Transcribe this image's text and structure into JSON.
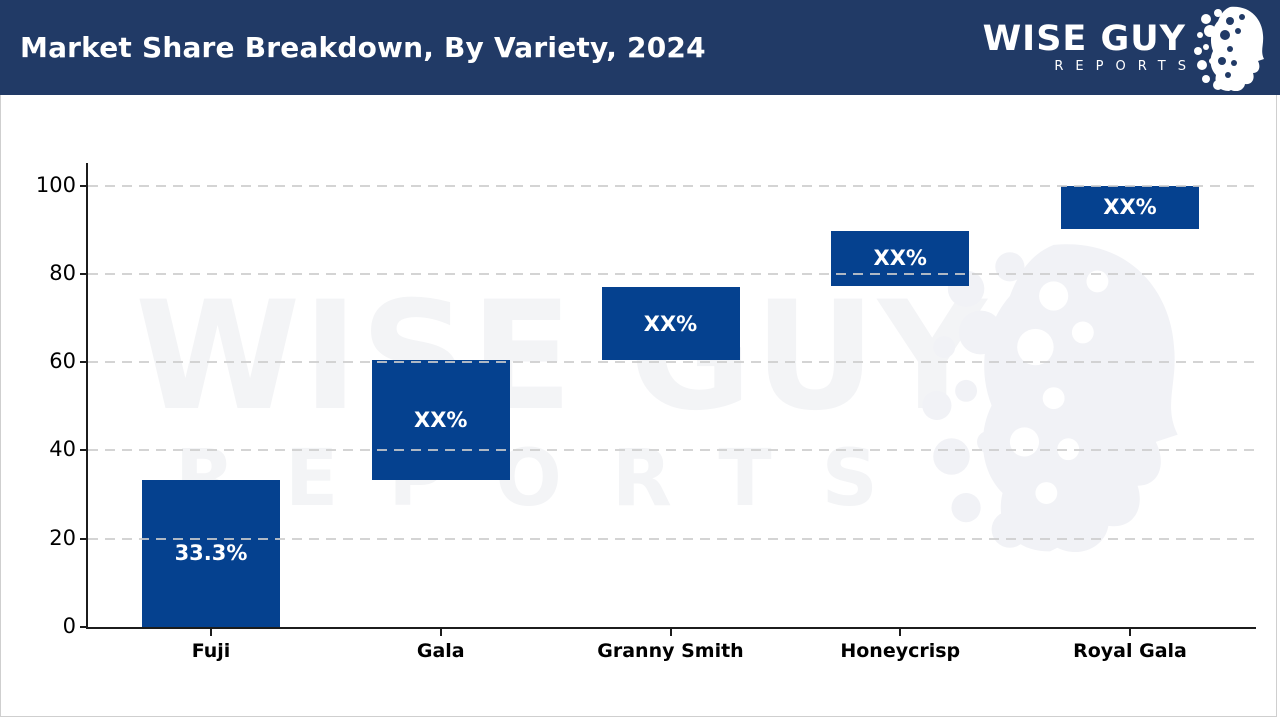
{
  "header": {
    "title": "Market Share Breakdown, By Variety, 2024",
    "bg_color": "#213a66",
    "logo": {
      "line1": "WISE GUY",
      "line2": "REPORTS"
    }
  },
  "watermark": {
    "line1": "WISE GUY",
    "line2": "REPORTS"
  },
  "chart_data": {
    "type": "bar",
    "subtype": "waterfall",
    "title": "Market Share Breakdown, By Variety, 2024",
    "categories": [
      "Fuji",
      "Gala",
      "Granny Smith",
      "Honeycrisp",
      "Royal Gala"
    ],
    "segments": [
      {
        "category": "Fuji",
        "start": 0,
        "end": 33.3,
        "label": "33.3%"
      },
      {
        "category": "Gala",
        "start": 33.3,
        "end": 60.5,
        "label": "XX%"
      },
      {
        "category": "Granny Smith",
        "start": 60.5,
        "end": 77.0,
        "label": "XX%"
      },
      {
        "category": "Honeycrisp",
        "start": 77.3,
        "end": 89.8,
        "label": "XX%"
      },
      {
        "category": "Royal Gala",
        "start": 90.2,
        "end": 100,
        "label": "XX%"
      }
    ],
    "y_ticks": [
      0,
      20,
      40,
      60,
      80,
      100
    ],
    "ylim": [
      0,
      105
    ],
    "xlabel": "",
    "ylabel": "",
    "legend": "none",
    "grid": "horizontal-dashed",
    "bar_color": "#05418f",
    "bar_label_color": "#ffffff",
    "axis_color": "#1c1c1c"
  }
}
